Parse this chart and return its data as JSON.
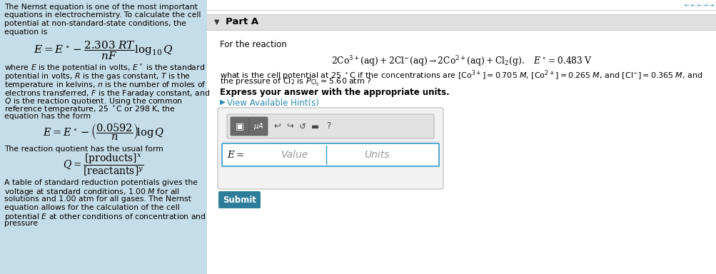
{
  "left_bg_color": "#c5dde8",
  "white": "#ffffff",
  "fig_bg": "#d8d8d8",
  "teal_btn": "#2d7d9a",
  "hint_color": "#2d8ab0",
  "panel_divider": 290,
  "left_text_lines_intro": [
    "The Nernst equation is one of the most important",
    "equations in electrochemistry. To calculate the cell",
    "potential at non-standard-state conditions, the",
    "equation is"
  ],
  "left_text_lines_desc": [
    "where $E$ is the potential in volts, $E^\\circ$ is the standard",
    "potential in volts, $R$ is the gas constant, $T$ is the",
    "temperature in kelvins, $n$ is the number of moles of",
    "electrons transferred, $F$ is the Faraday constant, and",
    "$Q$ is the reaction quotient. Using the common",
    "reference temperature, 25 $^\\circ$C or 298 K, the",
    "equation has the form"
  ],
  "left_text_lines_rq": [
    "The reaction quotient has the usual form"
  ],
  "left_text_lines_bot": [
    "A table of standard reduction potentials gives the",
    "voltage at standard conditions, 1.00 $M$ for all",
    "solutions and 1.00 atm for all gases. The Nernst",
    "equation allows for the calculation of the cell",
    "potential $E$ at other conditions of concentration and",
    "pressure"
  ],
  "eq1": "$E = E^\\circ - \\dfrac{2.303\\;RT}{nF}\\log_{10} Q$",
  "eq2": "$E = E^\\circ - \\left(\\dfrac{0.0592}{n}\\right)\\!\\log Q$",
  "eq3": "$Q = \\dfrac{[\\mathrm{products}]^x}{[\\mathrm{reactants}]^y}$",
  "rxn": "$2\\mathrm{Co}^{3+}(\\mathrm{aq}) + 2\\mathrm{Cl}^{-}(\\mathrm{aq})\\rightarrow 2\\mathrm{Co}^{2+}(\\mathrm{aq}) + \\mathrm{Cl}_2(\\mathrm{g}).\\quad E^\\circ = 0.483\\;\\mathrm{V}$",
  "what_line1": "what is the cell potential at 25 $^\\circ$C if the concentrations are $[\\mathrm{Co}^{3+}] = 0.705\\;M$, $[\\mathrm{Co}^{2+}] = 0.265\\;M$, and $[\\mathrm{Cl}^{-}] = 0.365\\;M$, and",
  "what_line2": "the pressure of $\\mathrm{Cl}_2$ is $P_{\\mathrm{Cl}_2} = 5.60\\;\\mathrm{atm}$ ?",
  "express_line": "Express your answer with the appropriate units.",
  "hint_line": "View Available Hint(s)",
  "part_a": "Part A",
  "for_reaction": "For the reaction",
  "submit": "Submit",
  "value_label": "Value",
  "units_label": "Units"
}
